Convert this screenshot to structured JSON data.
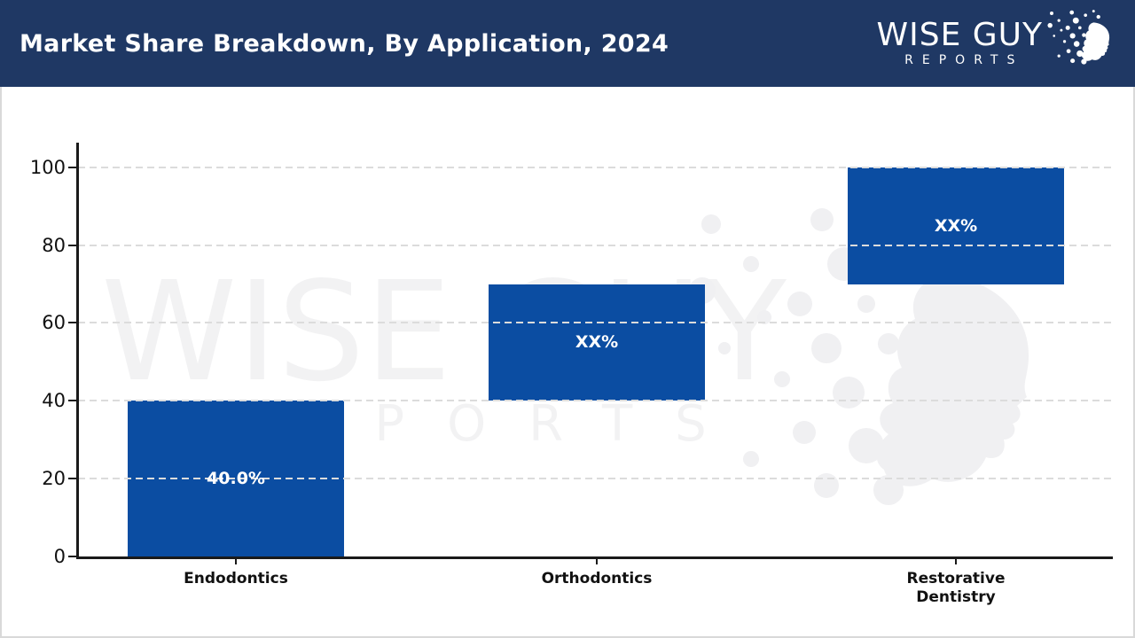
{
  "header": {
    "title": "Market Share Breakdown, By Application, 2024",
    "bg_color": "#1f3864",
    "logo": {
      "line1": "WISE GUY",
      "line2": "REPORTS"
    }
  },
  "watermark": {
    "line1": "WISE GUY",
    "line2": "REPORTS"
  },
  "chart_data": {
    "type": "bar",
    "subtype": "floating-stacked-breakdown",
    "title": "Market Share Breakdown, By Application, 2024",
    "categories": [
      "Endodontics",
      "Orthodontics",
      "Restorative Dentistry"
    ],
    "bars": [
      {
        "category": "Endodontics",
        "start": 0,
        "end": 40,
        "label": "40.0%"
      },
      {
        "category": "Orthodontics",
        "start": 40,
        "end": 70,
        "label": "XX%"
      },
      {
        "category": "Restorative Dentistry",
        "start": 70,
        "end": 100,
        "label": "XX%"
      }
    ],
    "yticks": [
      0,
      20,
      40,
      60,
      80,
      100
    ],
    "ylim": [
      0,
      106
    ],
    "xlabel": "",
    "ylabel": "",
    "grid": true,
    "grid_style": "dashed",
    "grid_position": "above-bars",
    "legend": "none",
    "bar_color": "#0b4da2",
    "bar_label_color": "#ffffff",
    "axis_color": "#1a1a1a"
  }
}
